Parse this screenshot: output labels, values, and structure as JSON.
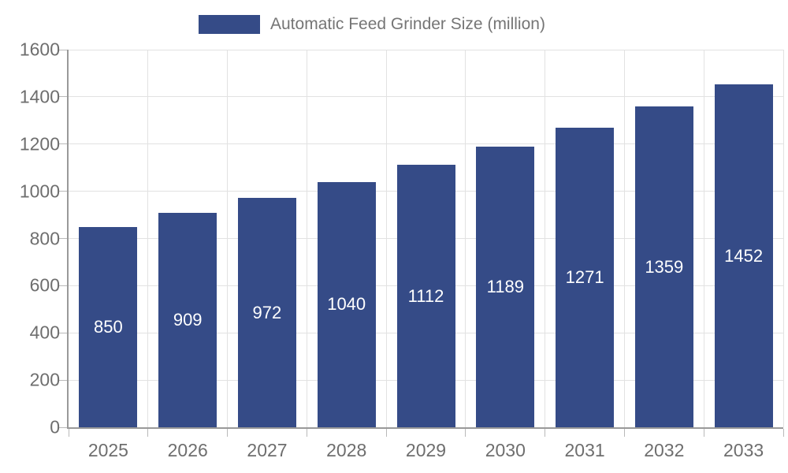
{
  "chart_data": {
    "type": "bar",
    "title": "",
    "series_name": "Automatic Feed Grinder Size (million)",
    "categories": [
      "2025",
      "2026",
      "2027",
      "2028",
      "2029",
      "2030",
      "2031",
      "2032",
      "2033"
    ],
    "values": [
      850,
      909,
      972,
      1040,
      1112,
      1189,
      1271,
      1359,
      1452
    ],
    "xlabel": "",
    "ylabel": "",
    "ylim": [
      0,
      1600
    ],
    "yticks": [
      0,
      200,
      400,
      600,
      800,
      1000,
      1200,
      1400,
      1600
    ],
    "grid": true,
    "legend_position": "top",
    "value_labels_position": "inside-center",
    "colors": {
      "bar": "#354B87",
      "value_label": "#ffffff",
      "axis_text": "#6e6e6e",
      "legend_text": "#757575",
      "grid_line": "#e2e2e2",
      "axis_line": "#999999",
      "tick": "#b9b9b9",
      "background": "#ffffff"
    }
  }
}
